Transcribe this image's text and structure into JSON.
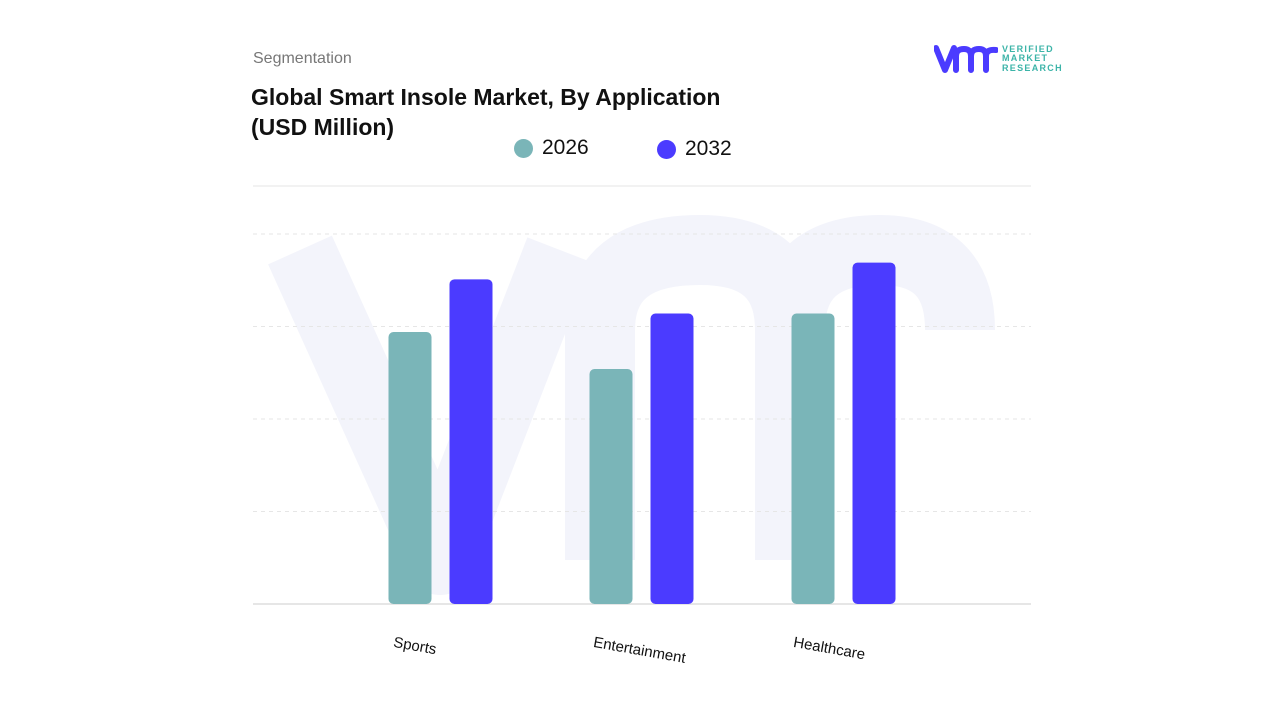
{
  "header": {
    "segment_label": "Segmentation"
  },
  "logo": {
    "line1": "VERIFIED",
    "line2": "MARKET",
    "line3": "RESEARCH",
    "mark": "vmr"
  },
  "colors": {
    "series_2026": "#7ab5b8",
    "series_2032": "#4b3bff",
    "grid": "#e6e6e6",
    "watermark": "#f3f4fb"
  },
  "chart_data": {
    "type": "bar",
    "title": "Global Smart Insole Market, By Application",
    "subtitle": "(USD Million)",
    "categories": [
      "Sports",
      "Entertainment",
      "Healthcare"
    ],
    "series": [
      {
        "name": "2026",
        "values": [
          2.94,
          2.54,
          3.14
        ]
      },
      {
        "name": "2032",
        "values": [
          3.51,
          3.14,
          3.69
        ]
      }
    ],
    "ylim": [
      0,
      4.5
    ],
    "grid": true,
    "legend_placement": "top-center",
    "xlabel": "",
    "ylabel": ""
  }
}
